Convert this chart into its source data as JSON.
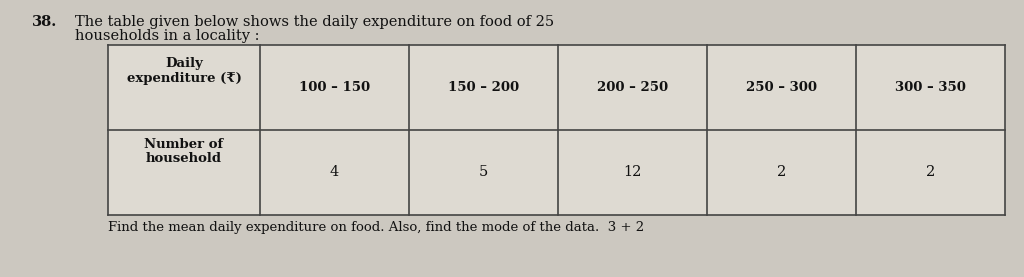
{
  "question_number": "38.",
  "question_text": "The table given below shows the daily expenditure on food of 25\nhouseholds in a locality :",
  "col_header_row1": "Daily",
  "col_header_row2": "expenditure (₹)",
  "row2_label1": "Number of",
  "row2_label2": "household",
  "columns": [
    "100 – 150",
    "150 – 200",
    "200 – 250",
    "250 – 300",
    "300 – 350"
  ],
  "values": [
    "4",
    "5",
    "12",
    "2",
    "2"
  ],
  "footer_text": "Find the mean daily expenditure on food. Also, find the mode of the data.  3 + 2",
  "bg_color": "#ccc8c0",
  "table_bg": "#dedad2",
  "text_color": "#111111",
  "font_size_question": 10.5,
  "font_size_table": 9.5,
  "font_size_footer": 9.5
}
